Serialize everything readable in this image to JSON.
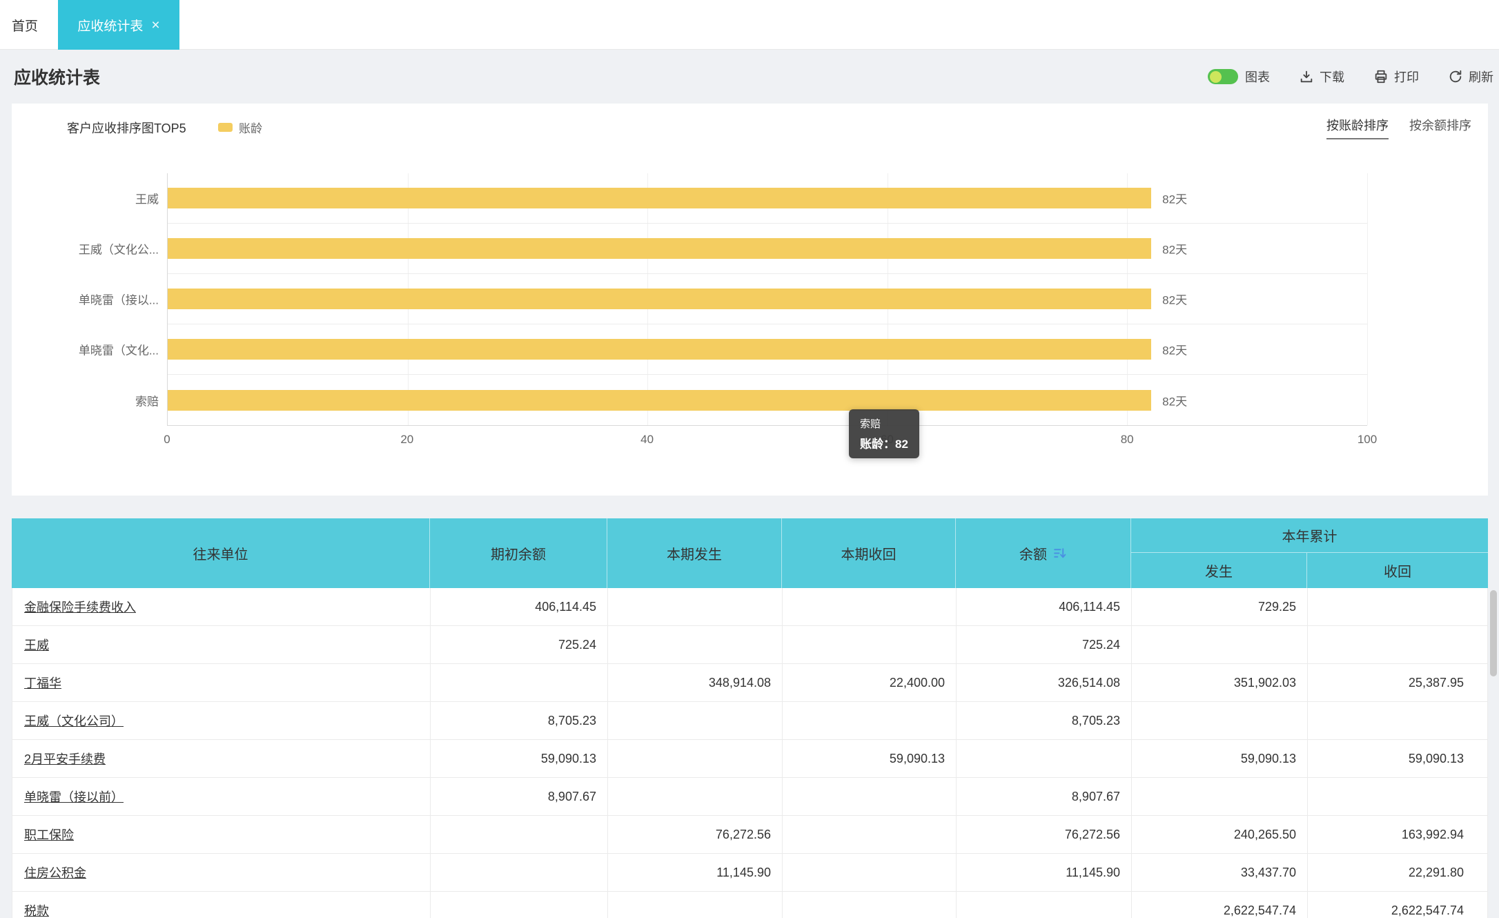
{
  "colors": {
    "accent": "#33C3DA",
    "header": "#55CBDB",
    "bar": "#F4CD60",
    "toggle": "#55C14F",
    "knob": "#CDE65C",
    "sort": "#4A90E2"
  },
  "tabs": [
    {
      "label": "首页"
    },
    {
      "label": "应收统计表",
      "close": "×"
    }
  ],
  "page": {
    "title": "应收统计表"
  },
  "toolbar": {
    "chart_toggle_label": "图表",
    "download": "下载",
    "print": "打印",
    "refresh": "刷新"
  },
  "chart": {
    "title": "客户应收排序图TOP5",
    "legend_label": "账龄",
    "sort_tabs": [
      {
        "label": "按账龄排序",
        "active": true
      },
      {
        "label": "按余额排序",
        "active": false
      }
    ],
    "tooltip": {
      "title": "索赔",
      "label": "账龄：82"
    }
  },
  "chart_data": {
    "type": "bar",
    "orientation": "horizontal",
    "title": "客户应收排序图TOP5",
    "series_name": "账龄",
    "legend": [
      "账龄"
    ],
    "categories": [
      "王威",
      "王威（文化公...",
      "单晓雷（接以...",
      "单晓雷（文化...",
      "索赔"
    ],
    "values": [
      82,
      82,
      82,
      82,
      82
    ],
    "value_suffix": "天",
    "xlim": [
      0,
      100
    ],
    "xticks": [
      0,
      20,
      40,
      60,
      80,
      100
    ],
    "grid": true,
    "legend_position": "top"
  },
  "table": {
    "headers": {
      "unit": "往来单位",
      "opening_balance": "期初余额",
      "period_occurred": "本期发生",
      "period_recovered": "本期收回",
      "balance": "余额",
      "ytd_group": "本年累计",
      "ytd_occurred": "发生",
      "ytd_recovered": "收回"
    },
    "rows": [
      {
        "unit": "金融保险手续费收入",
        "opening": "406,114.45",
        "occurred": "",
        "recovered": "",
        "balance": "406,114.45",
        "ytd_occurred": "729.25",
        "ytd_recovered": ""
      },
      {
        "unit": "王威",
        "opening": "725.24",
        "occurred": "",
        "recovered": "",
        "balance": "725.24",
        "ytd_occurred": "",
        "ytd_recovered": ""
      },
      {
        "unit": "丁福华",
        "opening": "",
        "occurred": "348,914.08",
        "recovered": "22,400.00",
        "balance": "326,514.08",
        "ytd_occurred": "351,902.03",
        "ytd_recovered": "25,387.95"
      },
      {
        "unit": "王威（文化公司）",
        "opening": "8,705.23",
        "occurred": "",
        "recovered": "",
        "balance": "8,705.23",
        "ytd_occurred": "",
        "ytd_recovered": ""
      },
      {
        "unit": "2月平安手续费",
        "opening": "59,090.13",
        "occurred": "",
        "recovered": "59,090.13",
        "balance": "",
        "ytd_occurred": "59,090.13",
        "ytd_recovered": "59,090.13"
      },
      {
        "unit": "单晓雷（接以前）",
        "opening": "8,907.67",
        "occurred": "",
        "recovered": "",
        "balance": "8,907.67",
        "ytd_occurred": "",
        "ytd_recovered": ""
      },
      {
        "unit": "职工保险",
        "opening": "",
        "occurred": "76,272.56",
        "recovered": "",
        "balance": "76,272.56",
        "ytd_occurred": "240,265.50",
        "ytd_recovered": "163,992.94"
      },
      {
        "unit": "住房公积金",
        "opening": "",
        "occurred": "11,145.90",
        "recovered": "",
        "balance": "11,145.90",
        "ytd_occurred": "33,437.70",
        "ytd_recovered": "22,291.80"
      },
      {
        "unit": "税款",
        "opening": "",
        "occurred": "",
        "recovered": "",
        "balance": "",
        "ytd_occurred": "2,622,547.74",
        "ytd_recovered": "2,622,547.74"
      }
    ]
  }
}
